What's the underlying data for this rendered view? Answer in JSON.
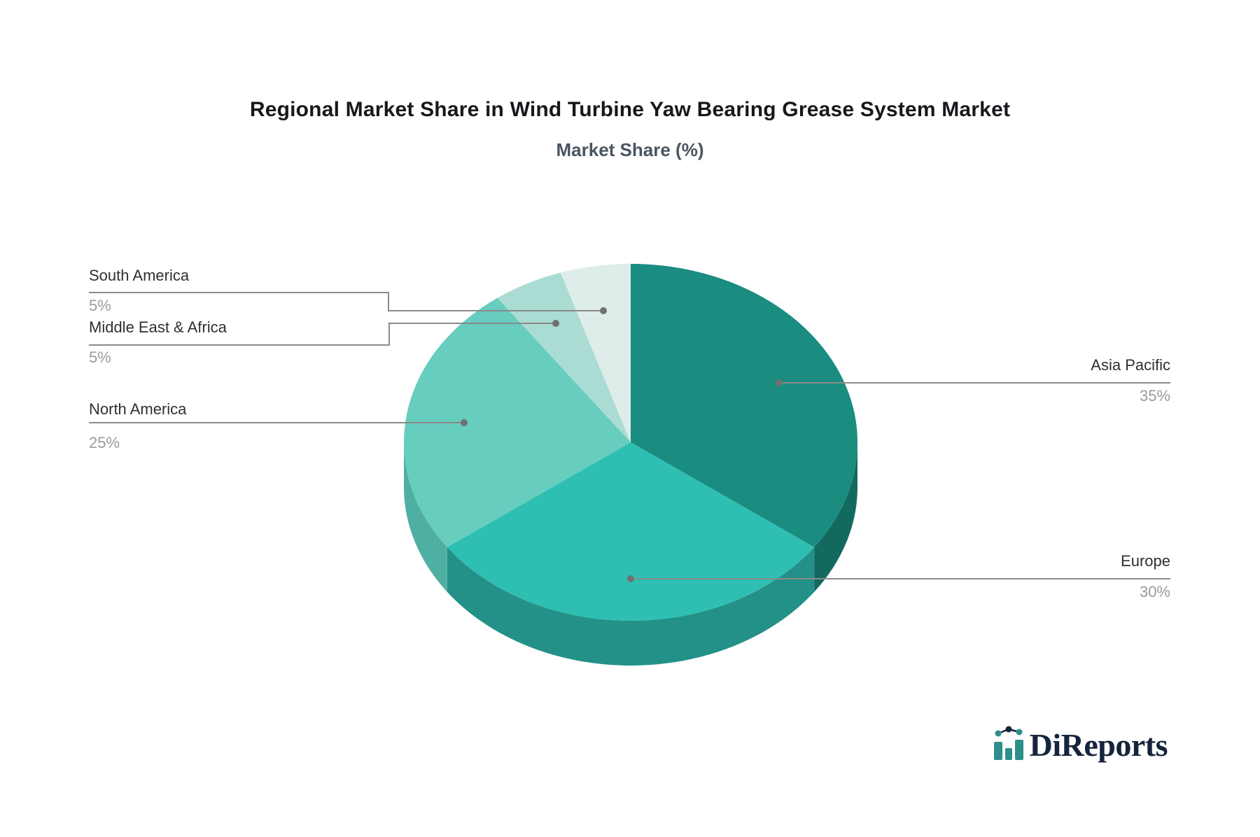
{
  "header": {
    "title": "Regional Market Share in Wind Turbine Yaw Bearing Grease System Market",
    "subtitle": "Market Share (%)"
  },
  "chart_data": {
    "type": "pie",
    "style": "3d",
    "title": "Regional Market Share in Wind Turbine Yaw Bearing Grease System Market",
    "subtitle": "Market Share (%)",
    "unit": "%",
    "start_angle_deg": 0,
    "direction": "clockwise",
    "legend": "none",
    "slices": [
      {
        "name": "Asia Pacific",
        "value": 35,
        "pct_label": "35%",
        "color": "#1A8C80",
        "side_color": "#14695F"
      },
      {
        "name": "Europe",
        "value": 30,
        "pct_label": "30%",
        "color": "#2EBFB2",
        "side_color": "#239188"
      },
      {
        "name": "North America",
        "value": 25,
        "pct_label": "25%",
        "color": "#66CDBF",
        "side_color": "#4FAFA3"
      },
      {
        "name": "Middle East & Africa",
        "value": 5,
        "pct_label": "5%",
        "color": "#ABDCD3",
        "side_color": "#8FC4BA"
      },
      {
        "name": "South America",
        "value": 5,
        "pct_label": "5%",
        "color": "#DFEDEA",
        "side_color": "#C4D8D4"
      }
    ],
    "label_style": {
      "name_color": "#2F2F2F",
      "value_color": "#9B9B9B"
    },
    "leader_line_color": "#8A8A8A",
    "leader_dot_color": "#707070"
  },
  "logo": {
    "text": "DiReports",
    "icon": "bar-chart-icon",
    "text_color": "#16243C",
    "icon_color": "#2D8F8B"
  }
}
